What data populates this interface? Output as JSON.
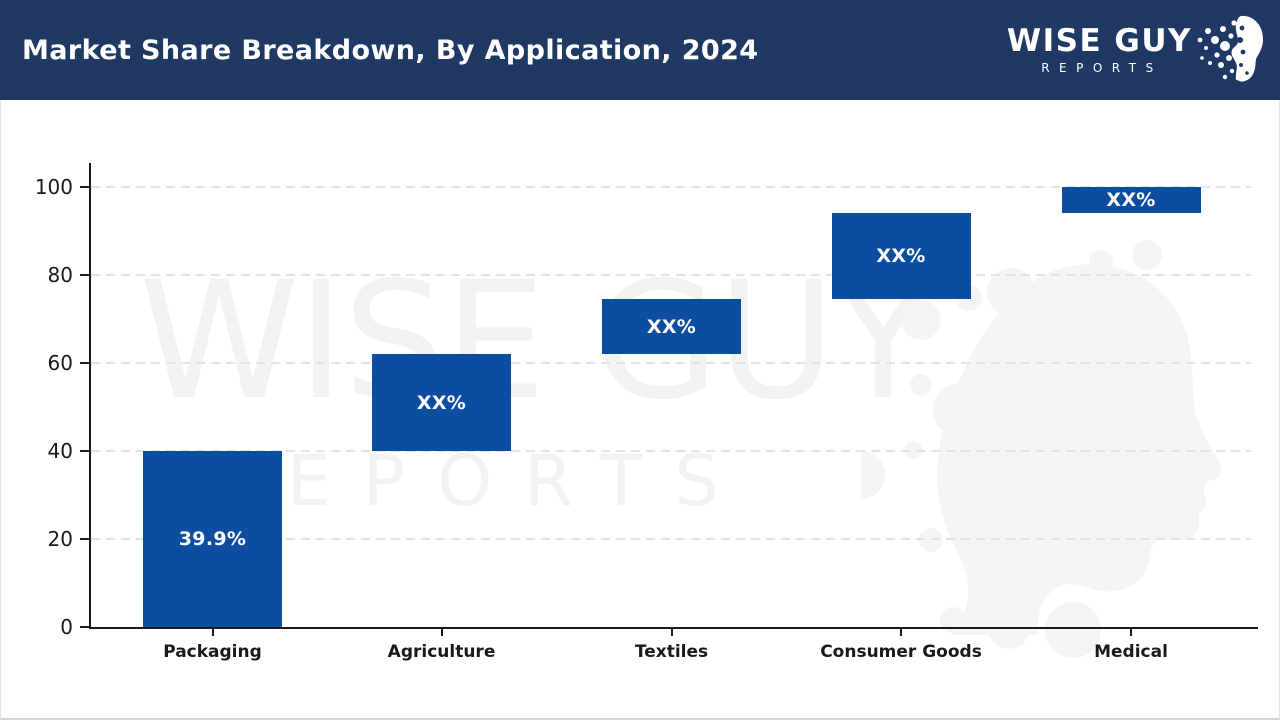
{
  "header": {
    "title": "Market Share Breakdown, By Application, 2024"
  },
  "logo": {
    "line1": "WISE GUY",
    "line2": "REPORTS",
    "icon": "dotted-head-profile"
  },
  "watermark": {
    "line1": "WISE GUY",
    "line2": "REPORTS"
  },
  "colors": {
    "header_bg": "#203864",
    "bar": "#0c4da2",
    "axis": "#1a1a1a",
    "gridline": "#e3e3e3",
    "bar_label_text": "#ffffff",
    "watermark": "#f2f2f2"
  },
  "chart_data": {
    "type": "waterfall",
    "title": "Market Share Breakdown, By Application, 2024",
    "categories": [
      "Packaging",
      "Agriculture",
      "Textiles",
      "Consumer Goods",
      "Medical"
    ],
    "segments": [
      {
        "category": "Packaging",
        "start": 0,
        "end": 39.9,
        "label": "39.9%"
      },
      {
        "category": "Agriculture",
        "start": 39.9,
        "end": 62.0,
        "label": "XX%"
      },
      {
        "category": "Textiles",
        "start": 62.0,
        "end": 74.5,
        "label": "XX%"
      },
      {
        "category": "Consumer Goods",
        "start": 74.5,
        "end": 94.0,
        "label": "XX%"
      },
      {
        "category": "Medical",
        "start": 94.0,
        "end": 100.0,
        "label": "XX%"
      }
    ],
    "y_ticks": [
      0,
      20,
      40,
      60,
      80,
      100
    ],
    "ylim": [
      0,
      105
    ],
    "grid": "dashed-horizontal",
    "legend": "none",
    "xlabel": "",
    "ylabel": ""
  }
}
